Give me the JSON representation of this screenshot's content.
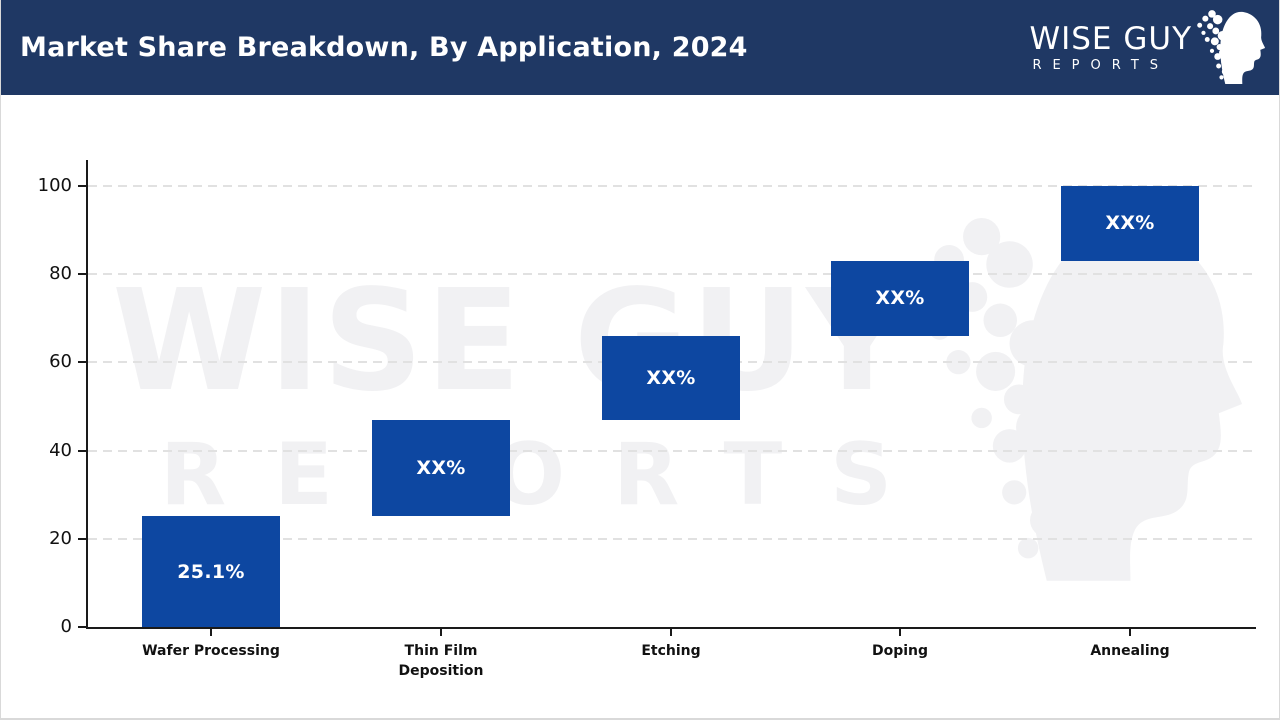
{
  "header": {
    "title": "Market Share Breakdown, By Application, 2024",
    "logo": {
      "line1": "WISE GUY",
      "line2": "REPORTS"
    }
  },
  "watermark": {
    "line1": "WISE GUY",
    "line2": "REPORTS"
  },
  "chart_data": {
    "type": "bar",
    "subtype": "waterfall",
    "title": "Market Share Breakdown, By Application, 2024",
    "categories": [
      "Wafer Processing",
      "Thin Film\nDeposition",
      "Etching",
      "Doping",
      "Annealing"
    ],
    "segments": [
      {
        "category": "Wafer Processing",
        "start": 0,
        "end": 25.1,
        "label": "25.1%"
      },
      {
        "category": "Thin Film Deposition",
        "start": 25.1,
        "end": 47,
        "label": "XX%"
      },
      {
        "category": "Etching",
        "start": 47,
        "end": 66,
        "label": "XX%"
      },
      {
        "category": "Doping",
        "start": 66,
        "end": 83,
        "label": "XX%"
      },
      {
        "category": "Annealing",
        "start": 83,
        "end": 100,
        "label": "XX%"
      }
    ],
    "yticks": [
      0,
      20,
      40,
      60,
      80,
      100
    ],
    "ylim": [
      0,
      106
    ],
    "xlabel": "",
    "ylabel": "",
    "grid": "horizontal-dashed",
    "legend": "none",
    "bar_color": "#0d47a1",
    "bar_label_color": "#ffffff",
    "axis_color": "#1a1a1a",
    "gridline_color": "#e1e1e1"
  },
  "colors": {
    "header_bg": "#1f3864",
    "page_bg": "#ffffff",
    "watermark": "#f1f1f3"
  }
}
